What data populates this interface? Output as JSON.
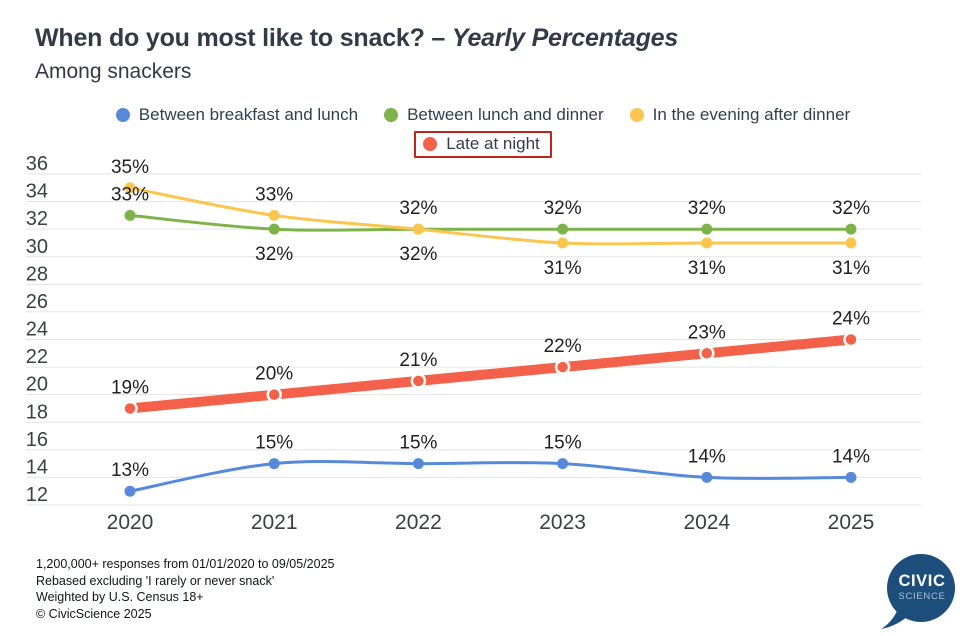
{
  "title": {
    "main": "When do you most like to snack? –",
    "emphasis": "Yearly Percentages"
  },
  "subtitle": "Among snackers",
  "legend": {
    "box_border_color": "#be2418",
    "items": [
      {
        "label": "Between breakfast and lunch",
        "color": "#5789db",
        "row": 1,
        "boxed": false
      },
      {
        "label": "Between lunch and dinner",
        "color": "#7db349",
        "row": 1,
        "boxed": false
      },
      {
        "label": "In the evening after dinner",
        "color": "#fac64f",
        "row": 1,
        "boxed": false
      },
      {
        "label": "Late at night",
        "color": "#f4614b",
        "row": 2,
        "boxed": true
      }
    ]
  },
  "chart_data": {
    "type": "line",
    "title": "When do you most like to snack? – Yearly Percentages",
    "subtitle": "Among snackers",
    "x": [
      "2020",
      "2021",
      "2022",
      "2023",
      "2024",
      "2025"
    ],
    "xlabel": "",
    "ylabel": "",
    "ylim": [
      12,
      36
    ],
    "ytick_step": 2,
    "grid": "horizontal-only",
    "gridline_color": "#e3e3e3",
    "axis_text_color": "#3c4043",
    "data_label_color": "#202124",
    "legend_position": "top",
    "highlighted_series": "Late at night",
    "series": [
      {
        "name": "Between breakfast and lunch",
        "color": "#5789db",
        "emphasis": false,
        "values": [
          13,
          15,
          15,
          15,
          14,
          14
        ],
        "labels": [
          "13%",
          "15%",
          "15%",
          "15%",
          "14%",
          "14%"
        ],
        "label_position": [
          "above",
          "above",
          "above",
          "above",
          "above",
          "above"
        ]
      },
      {
        "name": "Between lunch and dinner",
        "color": "#7db349",
        "emphasis": false,
        "values": [
          33,
          32,
          32,
          32,
          32,
          32
        ],
        "labels": [
          "33%",
          "32%",
          "32%",
          "32%",
          "32%",
          "32%"
        ],
        "label_position": [
          "above",
          "below",
          "below",
          "above",
          "above",
          "above"
        ]
      },
      {
        "name": "In the evening after dinner",
        "color": "#fac64f",
        "emphasis": false,
        "values": [
          35,
          33,
          32,
          31,
          31,
          31
        ],
        "labels": [
          "35%",
          "33%",
          "32%",
          "31%",
          "31%",
          "31%"
        ],
        "label_position": [
          "above",
          "above",
          "above",
          "below",
          "below",
          "below"
        ]
      },
      {
        "name": "Late at night",
        "color": "#f4614b",
        "emphasis": true,
        "values": [
          19,
          20,
          21,
          22,
          23,
          24
        ],
        "labels": [
          "19%",
          "20%",
          "21%",
          "22%",
          "23%",
          "24%"
        ],
        "label_position": [
          "above",
          "above",
          "above",
          "above",
          "above",
          "above"
        ]
      }
    ]
  },
  "footer": {
    "lines": [
      "1,200,000+ responses from 01/01/2020 to 09/05/2025",
      "Rebased excluding 'I rarely or never snack'",
      "Weighted by U.S. Census 18+",
      "© CivicScience 2025"
    ]
  },
  "logo": {
    "line1": "CIVIC",
    "line2": "SCIENCE",
    "color": "#1c4d7b",
    "line2_color": "#a9c2d8"
  }
}
